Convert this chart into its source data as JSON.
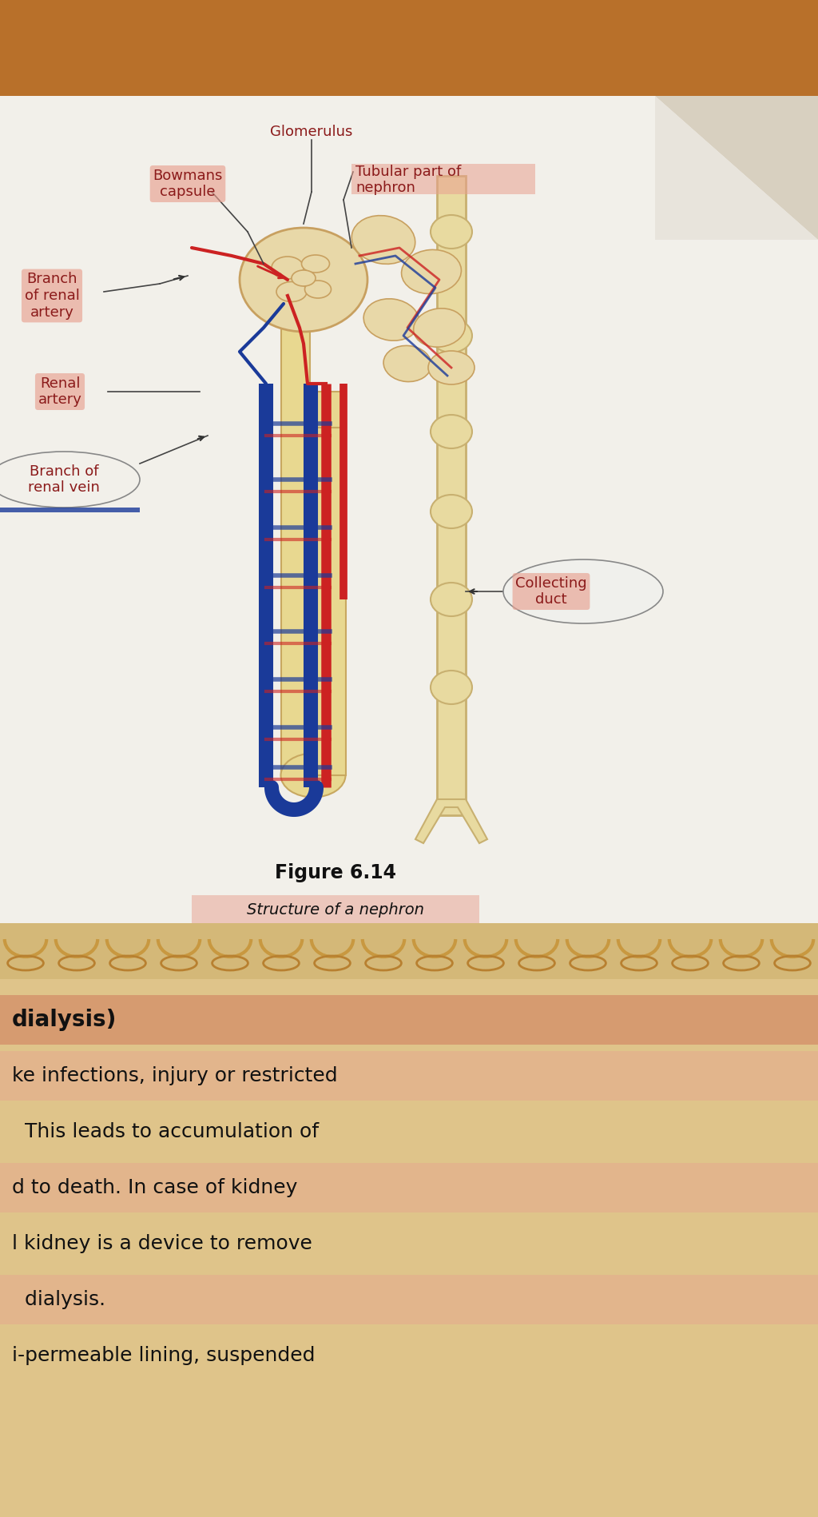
{
  "title": "Figure 6.14",
  "subtitle": "Structure of a nephron",
  "wood_color": "#b8702a",
  "page_color": "#f0eee8",
  "label_red": "#8b1a1a",
  "label_pink": "#e8a090",
  "glom_fill": "#e8d8a8",
  "glom_edge": "#c8a060",
  "tube_fill": "#e8d890",
  "tube_edge": "#c8a860",
  "blue_vessel": "#1a3a99",
  "red_vessel": "#cc2222",
  "collect_fill": "#e8daa0",
  "collect_edge": "#c8b070",
  "notebook_bg": "#e0c898",
  "notebook_border": "#b89050",
  "spiral_color": "#c8a050",
  "text_color": "#111111",
  "highlight_lines": [
    1,
    3,
    5,
    7
  ],
  "text_lines": [
    "dialysis)",
    "ke infections, injury or restricted",
    "  This leads to accumulation of",
    "d to death. In case of kidney",
    "l kidney is a device to remove",
    "  dialysis.",
    "i-permeable lining, suspended"
  ],
  "labels": {
    "glomerulus": "Glomerulus",
    "bowmans": "Bowmans\ncapsule",
    "tubular": "Tubular part of\nnephron",
    "branch_artery": "Branch\nof renal\nartery",
    "renal_artery": "Renal\nartery",
    "branch_vein": "Branch of\nrenal vein",
    "collecting": "Collecting\nduct"
  }
}
